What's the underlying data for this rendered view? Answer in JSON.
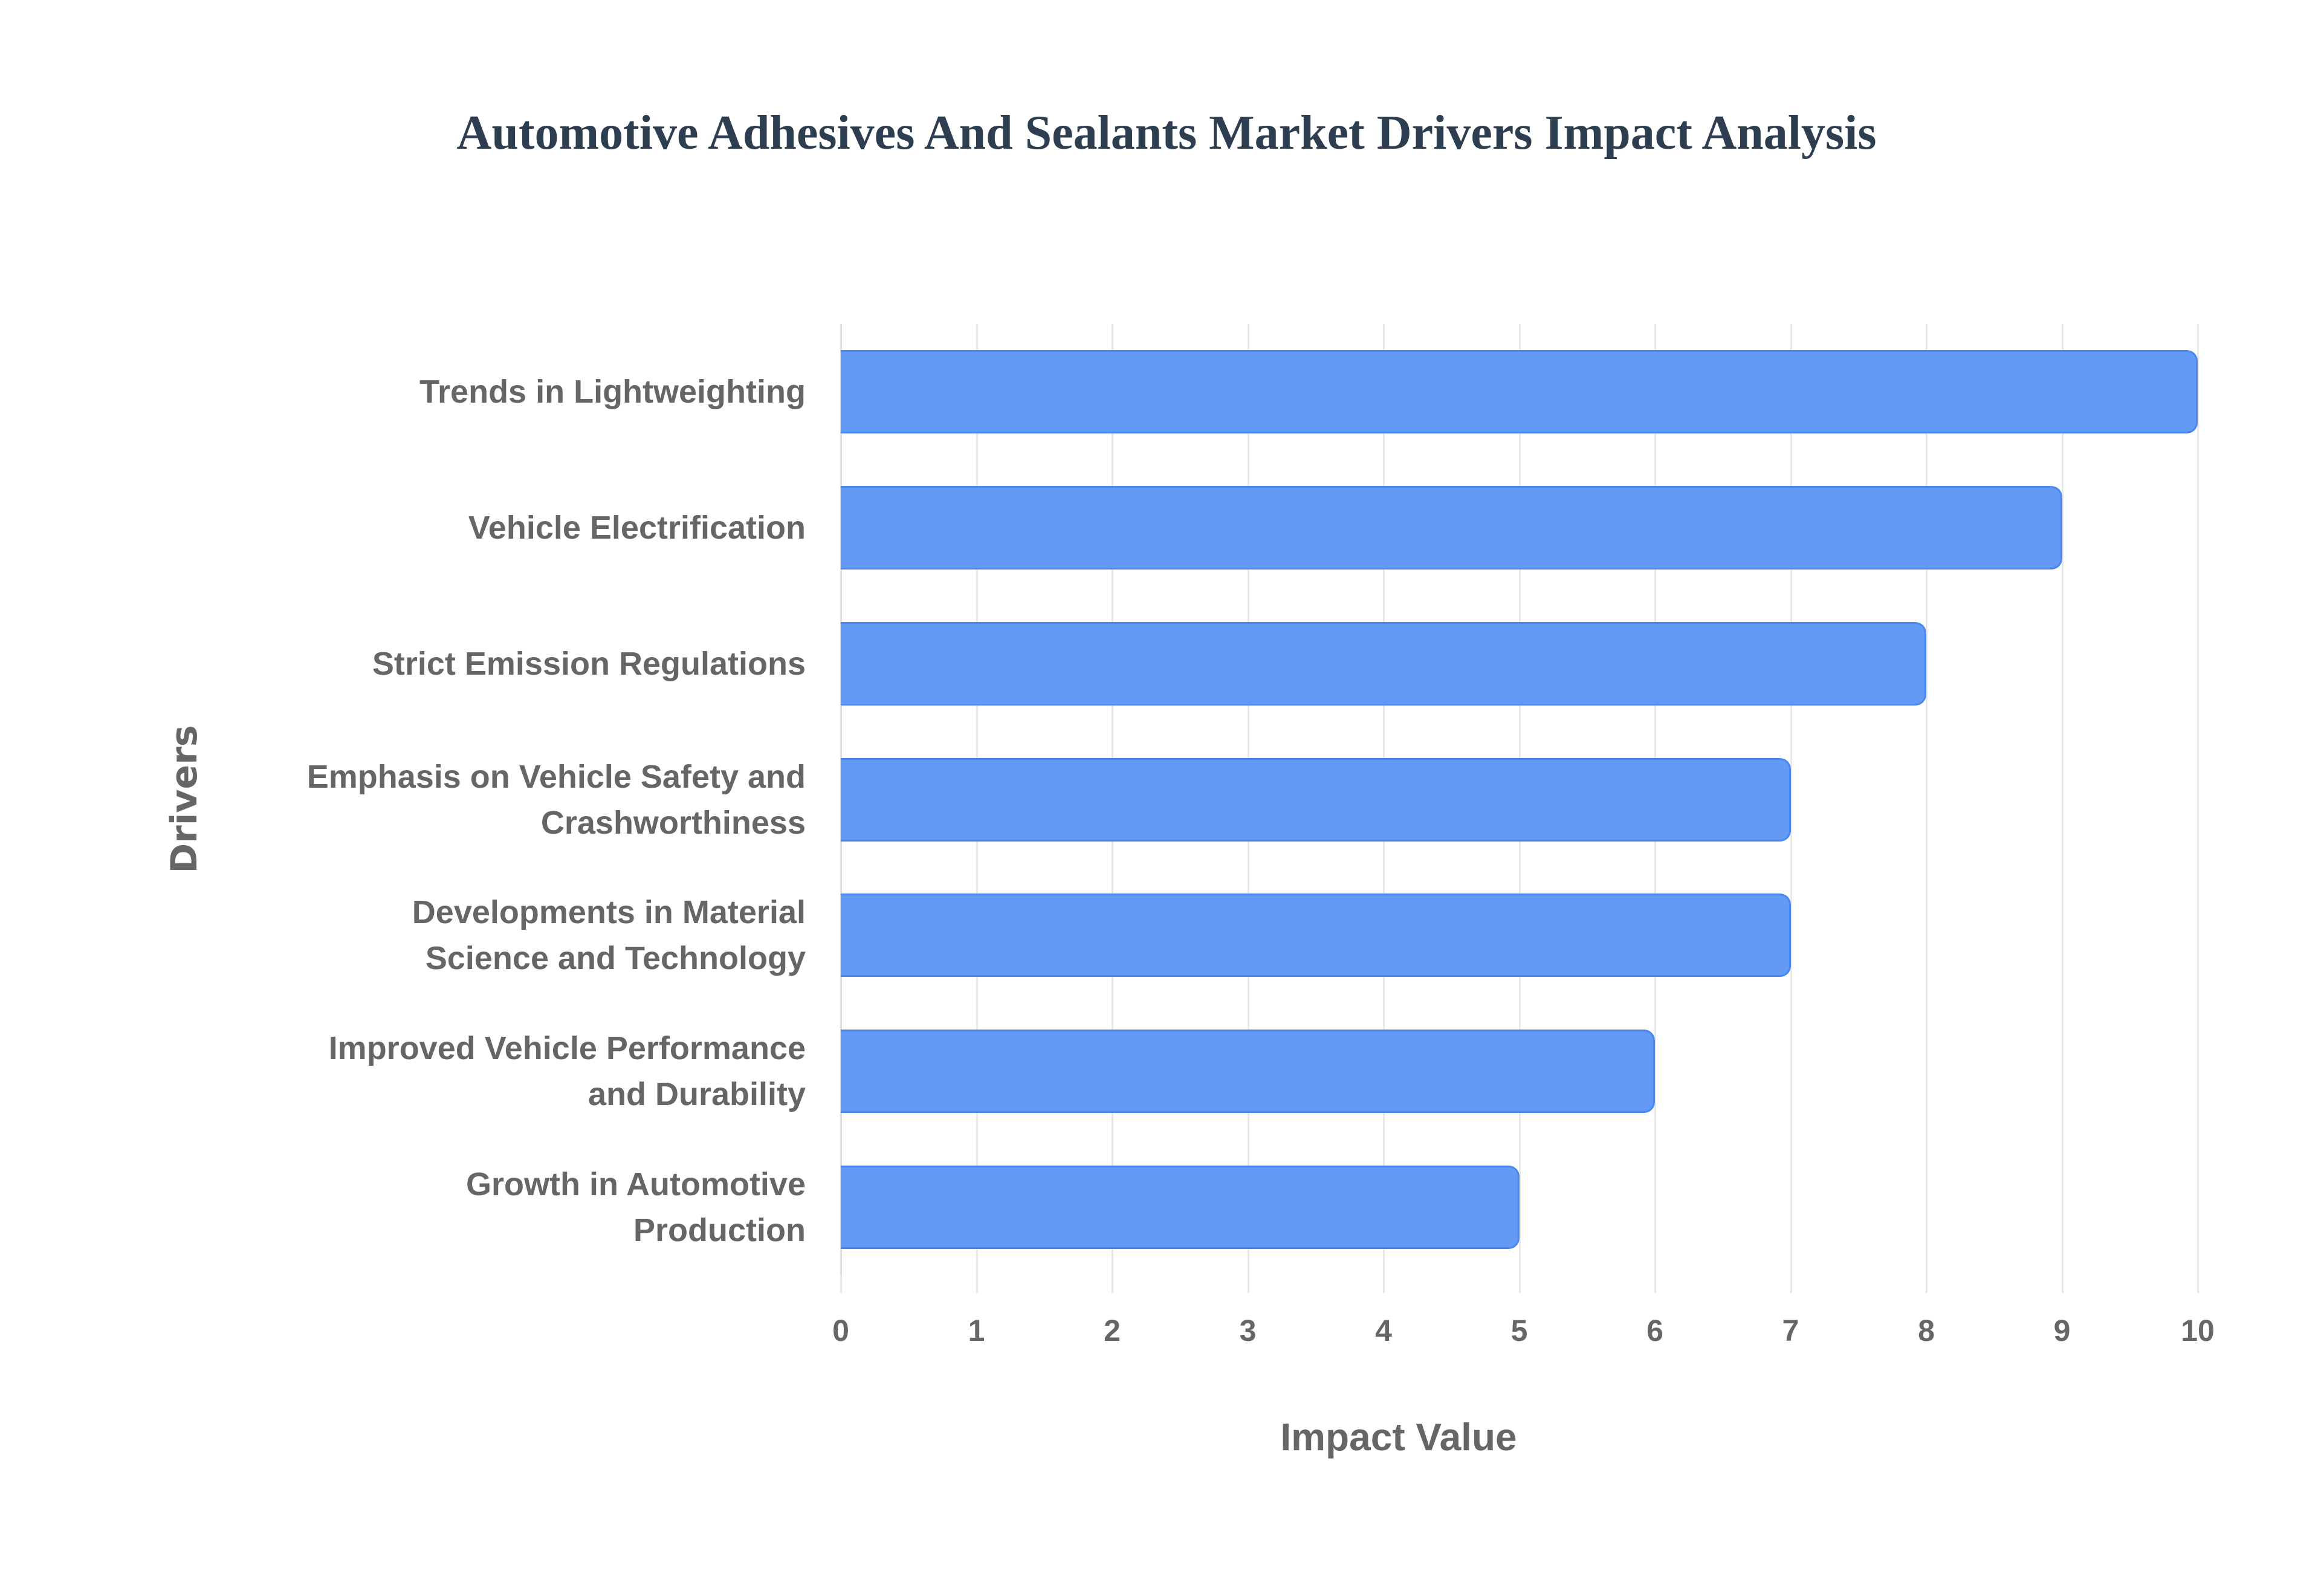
{
  "chart_data": {
    "type": "bar",
    "orientation": "horizontal",
    "title": "Automotive Adhesives And Sealants Market Drivers Impact Analysis",
    "xlabel": "Impact Value",
    "ylabel": "Drivers",
    "xlim": [
      0,
      10
    ],
    "x_ticks": [
      "0",
      "1",
      "2",
      "3",
      "4",
      "5",
      "6",
      "7",
      "8",
      "9",
      "10"
    ],
    "grid": true,
    "legend": null,
    "categories": [
      "Trends in Lightweighting",
      "Vehicle Electrification",
      "Strict Emission Regulations",
      "Emphasis on Vehicle Safety and Crashworthiness",
      "Developments in Material Science and Technology",
      "Improved Vehicle Performance and Durability",
      "Growth in Automotive Production"
    ],
    "category_display_lines": [
      [
        "Trends in Lightweighting"
      ],
      [
        "Vehicle Electrification"
      ],
      [
        "Strict Emission Regulations"
      ],
      [
        "Emphasis on Vehicle Safety and",
        "Crashworthiness"
      ],
      [
        "Developments in Material",
        "Science and Technology"
      ],
      [
        "Improved Vehicle Performance",
        "and Durability"
      ],
      [
        "Growth in Automotive",
        "Production"
      ]
    ],
    "values": [
      10,
      9,
      8,
      7,
      7,
      6,
      5
    ],
    "colors": {
      "bar_fill": "#629af5",
      "bar_border": "#4a86ee",
      "title": "#2c3e50",
      "axis_text": "#666666",
      "grid": "#e8e8ea"
    }
  }
}
